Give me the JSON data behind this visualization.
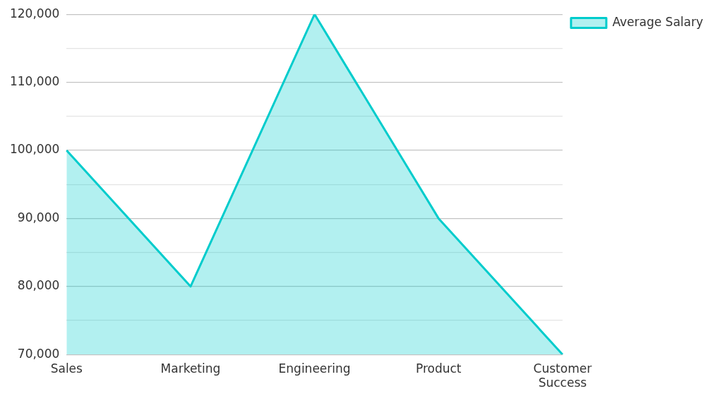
{
  "chart_data": {
    "type": "area",
    "categories": [
      "Sales",
      "Marketing",
      "Engineering",
      "Product",
      "Customer Success"
    ],
    "series": [
      {
        "name": "Average Salary",
        "color": "#00cccc",
        "values": [
          100000,
          80000,
          120000,
          90000,
          70000
        ]
      }
    ],
    "ylim": [
      70000,
      120000
    ],
    "yticks": [
      {
        "value": 70000,
        "label": "70,000"
      },
      {
        "value": 75000,
        "label": null
      },
      {
        "value": 80000,
        "label": "80,000"
      },
      {
        "value": 85000,
        "label": null
      },
      {
        "value": 90000,
        "label": "90,000"
      },
      {
        "value": 95000,
        "label": null
      },
      {
        "value": 100000,
        "label": "100,000"
      },
      {
        "value": 105000,
        "label": null
      },
      {
        "value": 110000,
        "label": "110,000"
      },
      {
        "value": 115000,
        "label": null
      },
      {
        "value": 120000,
        "label": "120,000"
      }
    ],
    "grid": "y",
    "legend": "top right",
    "marker": "none",
    "line_style": "solid"
  }
}
